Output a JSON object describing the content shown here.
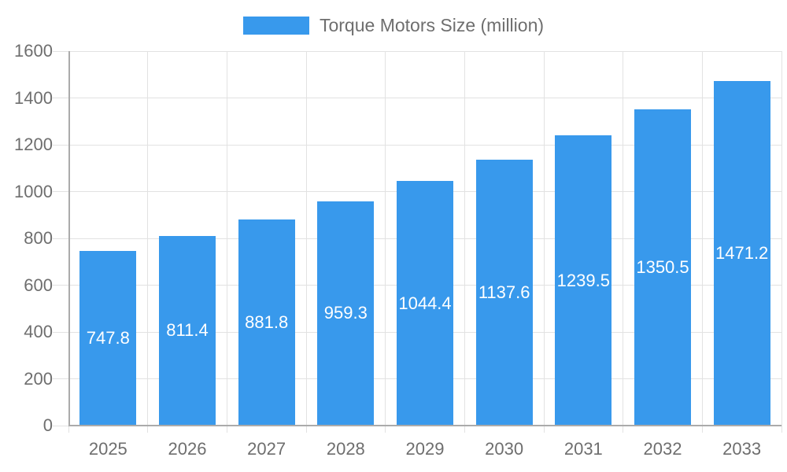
{
  "colors": {
    "bar": "#3899EC",
    "axis_text": "#6E6E6E",
    "grid": "#E2E2E2",
    "axis_line": "#ABABAB",
    "value_label": "#FFFFFF"
  },
  "chart_data": {
    "type": "bar",
    "legend_label": "Torque Motors Size (million)",
    "legend_position": "top-center",
    "categories": [
      "2025",
      "2026",
      "2027",
      "2028",
      "2029",
      "2030",
      "2031",
      "2032",
      "2033"
    ],
    "values": [
      747.8,
      811.4,
      881.8,
      959.3,
      1044.4,
      1137.6,
      1239.5,
      1350.5,
      1471.2
    ],
    "value_labels": "inside-center-white",
    "ylim": [
      0,
      1600
    ],
    "yticks": [
      0,
      200,
      400,
      600,
      800,
      1000,
      1200,
      1400,
      1600
    ],
    "grid": true
  }
}
